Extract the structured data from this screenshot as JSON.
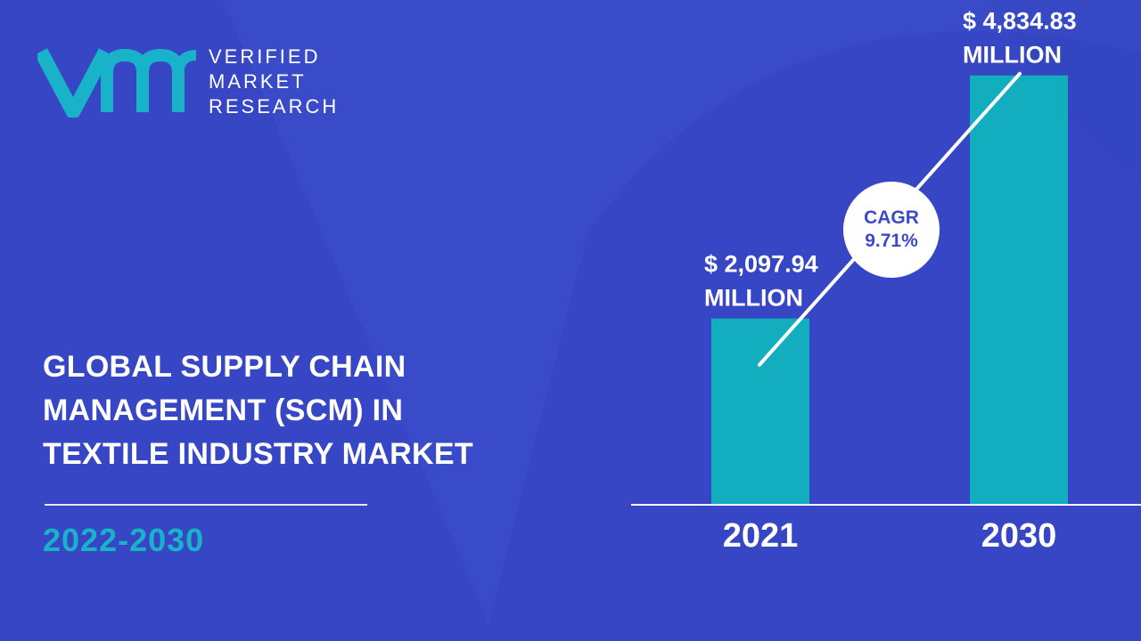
{
  "brand": {
    "logo_lines": [
      "VERIFIED",
      "MARKET",
      "RESEARCH"
    ],
    "logo_letters": "vmr"
  },
  "headline": {
    "lines": [
      "GLOBAL SUPPLY CHAIN",
      "MANAGEMENT (SCM) IN",
      "TEXTILE INDUSTRY MARKET"
    ]
  },
  "period": "2022-2030",
  "cagr": {
    "label": "CAGR",
    "value": "9.71%"
  },
  "colors": {
    "background": "#3a4bc9",
    "background_shape": "#3344bf",
    "bar": "#12aec0",
    "accent_text": "#19b3c9",
    "text": "#ffffff"
  },
  "chart_data": {
    "type": "bar",
    "categories": [
      "2021",
      "2030"
    ],
    "values": [
      2097.94,
      4834.83
    ],
    "value_labels": [
      [
        "$ 2,097.94",
        "MILLION"
      ],
      [
        "$ 4,834.83",
        "MILLION"
      ]
    ],
    "title": "",
    "xlabel": "",
    "ylabel": "",
    "ylim": [
      0,
      6000
    ],
    "grid": false
  }
}
